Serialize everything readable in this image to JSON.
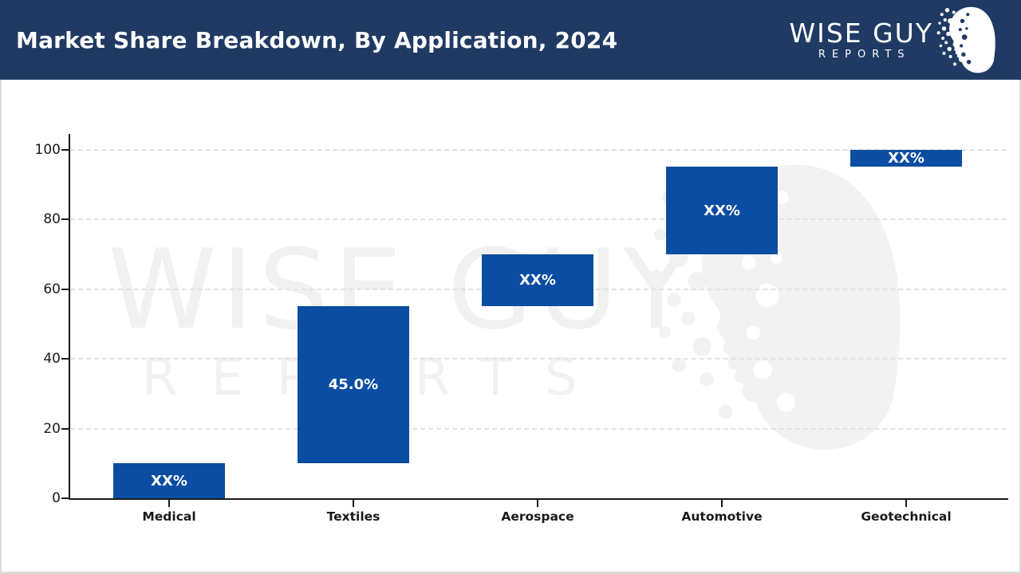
{
  "header": {
    "title": "Market Share Breakdown, By Application, 2024",
    "logo": {
      "line1": "WISE GUY",
      "line2": "REPORTS"
    }
  },
  "watermark": {
    "line1": "WISE GUY",
    "line2": "REPORTS"
  },
  "colors": {
    "header_bg": "#203a64",
    "bar": "#0b4da2",
    "bar_label": "#ffffff",
    "axis": "#1a1a1a",
    "grid": "#e2e2e2",
    "watermark": "#f1f1f1",
    "frame_border": "#d9d9d9"
  },
  "chart_data": {
    "type": "bar",
    "subtype": "waterfall",
    "title": "Market Share Breakdown, By Application, 2024",
    "xlabel": "",
    "ylabel": "",
    "categories": [
      "Medical",
      "Textiles",
      "Aerospace",
      "Automotive",
      "Geotechnical"
    ],
    "segments": [
      {
        "category": "Medical",
        "start": 0,
        "end": 10,
        "label": "XX%"
      },
      {
        "category": "Textiles",
        "start": 10,
        "end": 55,
        "label": "45.0%"
      },
      {
        "category": "Aerospace",
        "start": 55,
        "end": 70,
        "label": "XX%"
      },
      {
        "category": "Automotive",
        "start": 70,
        "end": 95,
        "label": "XX%"
      },
      {
        "category": "Geotechnical",
        "start": 95,
        "end": 100,
        "label": "XX%"
      }
    ],
    "ylim": [
      0,
      104
    ],
    "yticks": [
      0,
      20,
      40,
      60,
      80,
      100
    ],
    "grid": "horizontal-dashed",
    "legend": "none",
    "bar_value_labels_inside": true
  }
}
